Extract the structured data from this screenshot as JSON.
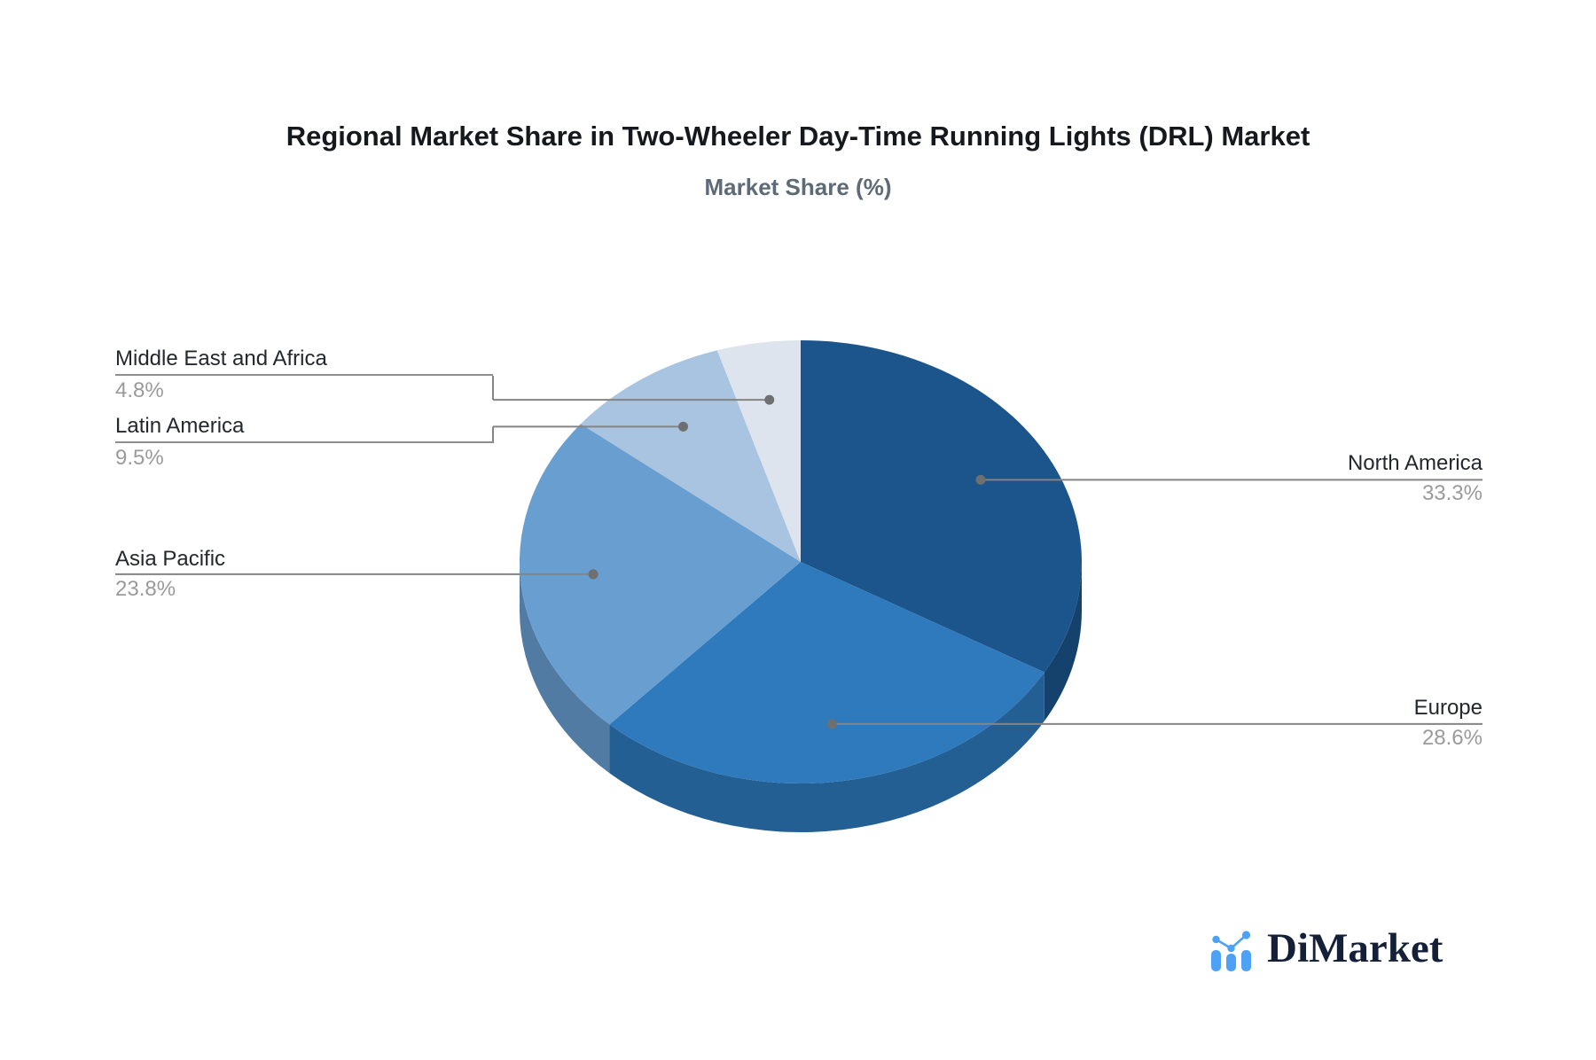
{
  "title": "Regional Market Share in Two-Wheeler Day-Time Running Lights (DRL) Market",
  "subtitle": "Market Share (%)",
  "chart_data": {
    "type": "pie",
    "title": "Regional Market Share in Two-Wheeler Day-Time Running Lights (DRL) Market",
    "subtitle": "Market Share (%)",
    "unit": "%",
    "effect": "3d",
    "start_angle_deg": 0,
    "direction": "clockwise",
    "legend_position": "none",
    "labels": [
      "North America",
      "Europe",
      "Asia Pacific",
      "Latin America",
      "Middle East and Africa"
    ],
    "values": [
      33.3,
      28.6,
      23.8,
      9.5,
      4.8
    ],
    "colors": [
      "#1b558c",
      "#2e7abd",
      "#699ed1",
      "#a8c4e0",
      "#dde4ee"
    ],
    "connector_color": "#848484",
    "label_text_color": "#23272e",
    "value_text_color": "#9a9a9a"
  },
  "callouts": [
    {
      "label": "North America",
      "value": "33.3%"
    },
    {
      "label": "Europe",
      "value": "28.6%"
    },
    {
      "label": "Asia Pacific",
      "value": "23.8%"
    },
    {
      "label": "Latin America",
      "value": "9.5%"
    },
    {
      "label": "Middle East and Africa",
      "value": "4.8%"
    }
  ],
  "logo": {
    "text": "DiMarket",
    "icon": "bar-chart-icon",
    "icon_color": "#4da2f5",
    "text_color": "#142038"
  }
}
